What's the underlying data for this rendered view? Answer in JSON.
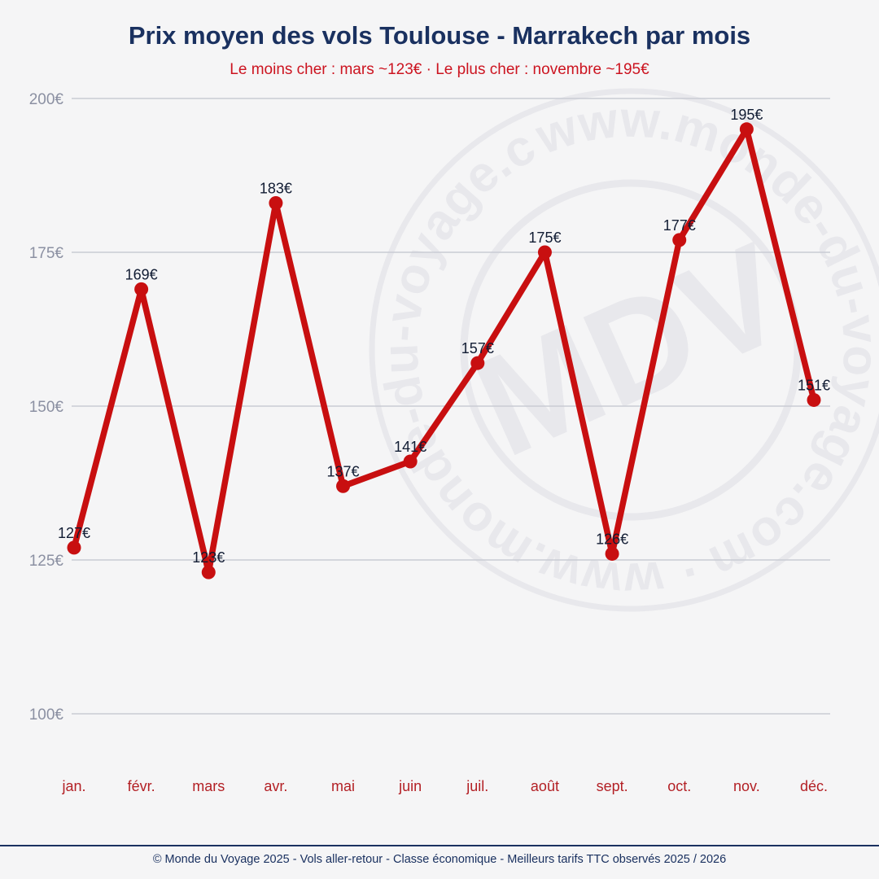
{
  "header": {
    "title": "Prix moyen des vols Toulouse - Marrakech par mois",
    "subtitle": "Le moins cher : mars ~123€ · Le plus cher : novembre ~195€"
  },
  "chart_data": {
    "type": "line",
    "title": "Prix moyen des vols Toulouse - Marrakech par mois",
    "categories": [
      "jan.",
      "févr.",
      "mars",
      "avr.",
      "mai",
      "juin",
      "juil.",
      "août",
      "sept.",
      "oct.",
      "nov.",
      "déc."
    ],
    "values": [
      127,
      169,
      123,
      183,
      137,
      141,
      157,
      175,
      126,
      177,
      195,
      151
    ],
    "point_labels": [
      "127€",
      "169€",
      "123€",
      "183€",
      "137€",
      "141€",
      "157€",
      "175€",
      "126€",
      "177€",
      "195€",
      "151€"
    ],
    "unit": "€",
    "ylim": [
      100,
      200
    ],
    "yticks": [
      100,
      125,
      150,
      175,
      200
    ],
    "ytick_labels": [
      "100€",
      "125€",
      "150€",
      "175€",
      "200€"
    ],
    "grid": true,
    "legend": "none",
    "min_point": {
      "month": "mars",
      "value": 123
    },
    "max_point": {
      "month": "novembre",
      "value": 195
    },
    "colors": {
      "line": "#c80f10",
      "point": "#c80f10",
      "point_label": "#111c33",
      "ytick": "#8b90a2",
      "gridline": "#c9ccd4",
      "month_label": "#b32025",
      "title": "#1a3160",
      "subtitle": "#cc1420",
      "background": "#f5f5f6",
      "watermark": "#e7e7eb"
    }
  },
  "watermark": {
    "ring_text": "www.monde-du-voyage.com · www.monde-du-voyage.com ·",
    "center_text": "MDV"
  },
  "footer": {
    "text": "© Monde du Voyage 2025 - Vols aller-retour - Classe économique - Meilleurs tarifs TTC observés 2025 / 2026"
  }
}
